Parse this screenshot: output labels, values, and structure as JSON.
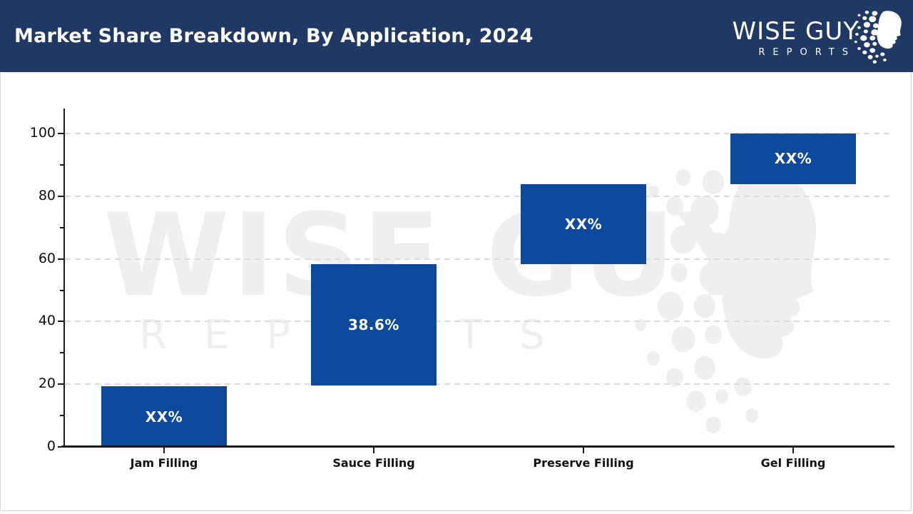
{
  "header": {
    "title": "Market Share Breakdown, By Application, 2024",
    "logo": {
      "name": "WISE GUY",
      "sub": "REPORTS"
    }
  },
  "watermark": {
    "name": "WISE GUY",
    "sub": "REPORTS"
  },
  "chart_data": {
    "type": "bar",
    "subtype": "floating-waterfall",
    "title": "Market Share Breakdown, By Application, 2024",
    "categories": [
      "Jam Filling",
      "Sauce Filling",
      "Preserve Filling",
      "Gel Filling"
    ],
    "bars": [
      {
        "category": "Jam Filling",
        "start": 0,
        "end": 19.3,
        "label": "XX%"
      },
      {
        "category": "Sauce Filling",
        "start": 19.7,
        "end": 58.3,
        "label": "38.6%"
      },
      {
        "category": "Preserve Filling",
        "start": 58.3,
        "end": 83.9,
        "label": "XX%"
      },
      {
        "category": "Gel Filling",
        "start": 83.9,
        "end": 100,
        "label": "XX%"
      }
    ],
    "xlabel": "",
    "ylabel": "",
    "ylim": [
      0,
      100
    ],
    "yticks": [
      0,
      20,
      40,
      60,
      80,
      100
    ],
    "grid": "horizontal-dashed",
    "legend": "none"
  },
  "colors": {
    "header_bg": "#1f3864",
    "title_text": "#ffffff",
    "bar": "#0d4a9d",
    "bar_label": "#ffffff",
    "grid": "#dcdcdc",
    "axis": "#1a1a1a",
    "tick_text": "#111111",
    "watermark": "#efefef"
  }
}
